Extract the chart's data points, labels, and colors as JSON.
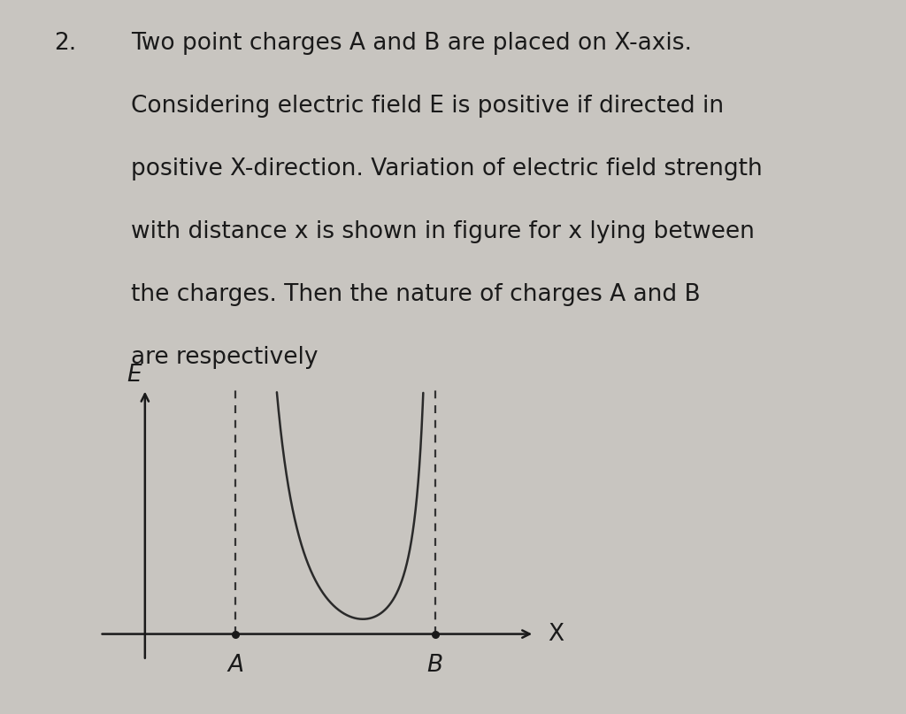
{
  "background_color": "#c8c5c0",
  "question_number": "2.",
  "question_text_lines": [
    [
      "Two point charges ",
      "A",
      " and ",
      "B",
      " are placed on ",
      "X",
      "-axis."
    ],
    [
      "Considering electric field ",
      "E",
      " is positive if directed in"
    ],
    [
      "positive ",
      "X",
      "-direction. Variation of electric field strength"
    ],
    [
      "with distance ",
      "x",
      " is shown in figure for ",
      "x",
      " lying between"
    ],
    [
      "the charges. Then the nature of charges ",
      "A",
      " and ",
      "B"
    ],
    [
      "are respectively"
    ]
  ],
  "charge_A_x": 1.0,
  "charge_B_x": 3.2,
  "x_axis_left": -0.5,
  "x_axis_right": 4.3,
  "y_axis_bottom": -0.5,
  "y_axis_top": 4.6,
  "curve_color": "#2a2a2a",
  "axis_color": "#1a1a1a",
  "dashed_color": "#333333",
  "label_E": "E",
  "label_X": "X",
  "label_A": "A",
  "label_B": "B",
  "text_color": "#1a1a1a",
  "font_size_labels": 19,
  "font_size_question": 19,
  "font_size_question_number": 19
}
